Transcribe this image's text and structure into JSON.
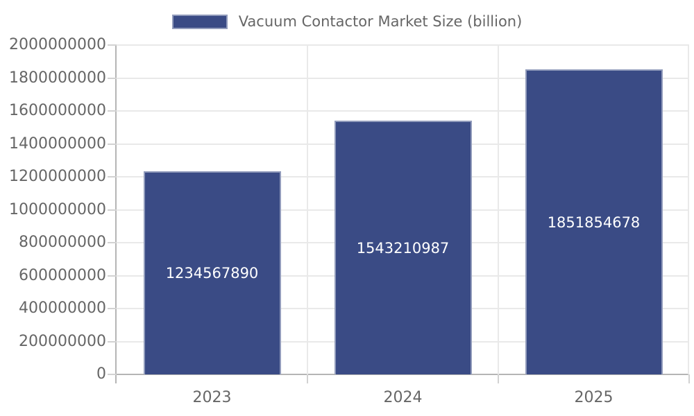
{
  "chart_data": {
    "type": "bar",
    "title": "Vacuum Contactor Market Size (billion)",
    "categories": [
      "2023",
      "2024",
      "2025"
    ],
    "values": [
      1234567890,
      1543210987,
      1851854678
    ],
    "value_labels": [
      "1234567890",
      "1543210987",
      "1851854678"
    ],
    "xlabel": "",
    "ylabel": "",
    "ylim": [
      0,
      2000000000
    ],
    "y_ticks": [
      0,
      200000000,
      400000000,
      600000000,
      800000000,
      1000000000,
      1200000000,
      1400000000,
      1600000000,
      1800000000,
      2000000000
    ],
    "y_tick_labels": [
      "0",
      "200000000",
      "400000000",
      "600000000",
      "800000000",
      "1000000000",
      "1200000000",
      "1400000000",
      "1600000000",
      "1800000000",
      "2000000000"
    ],
    "grid": true,
    "legend_position": "top-center",
    "value_labels_position": "center-inside-bar",
    "colors": {
      "bar": "#3A4B85",
      "bar_border": "rgba(255,255,255,0.45)",
      "text": "#666666",
      "value_text": "#FFFFFF",
      "grid": "#E9E9E9",
      "axis": "#B5B5B5",
      "tick": "#D2D2D2"
    }
  }
}
